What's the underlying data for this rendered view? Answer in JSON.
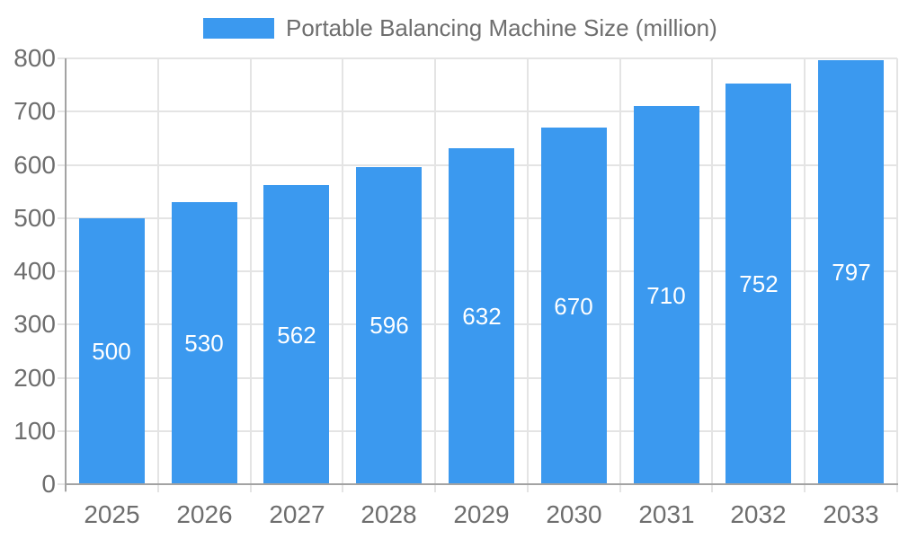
{
  "legend": {
    "label": "Portable Balancing Machine Size (million)"
  },
  "colors": {
    "bar": "#3b99ef",
    "grid": "#e4e4e4",
    "axis": "#a3a3a3",
    "label_text": "#6e6e6e",
    "value_text": "#ffffff",
    "background": "#ffffff"
  },
  "chart_data": {
    "type": "bar",
    "title": "",
    "categories": [
      "2025",
      "2026",
      "2027",
      "2028",
      "2029",
      "2030",
      "2031",
      "2032",
      "2033"
    ],
    "series": [
      {
        "name": "Portable Balancing Machine Size (million)",
        "values": [
          500,
          530,
          562,
          596,
          632,
          670,
          710,
          752,
          797
        ]
      }
    ],
    "xlabel": "",
    "ylabel": "",
    "ylim": [
      0,
      800
    ],
    "ytick_interval": 100,
    "ytick_labels": [
      "0",
      "100",
      "200",
      "300",
      "400",
      "500",
      "600",
      "700",
      "800"
    ],
    "grid": true,
    "legend_position": "top",
    "value_labels": "inside-middle"
  }
}
